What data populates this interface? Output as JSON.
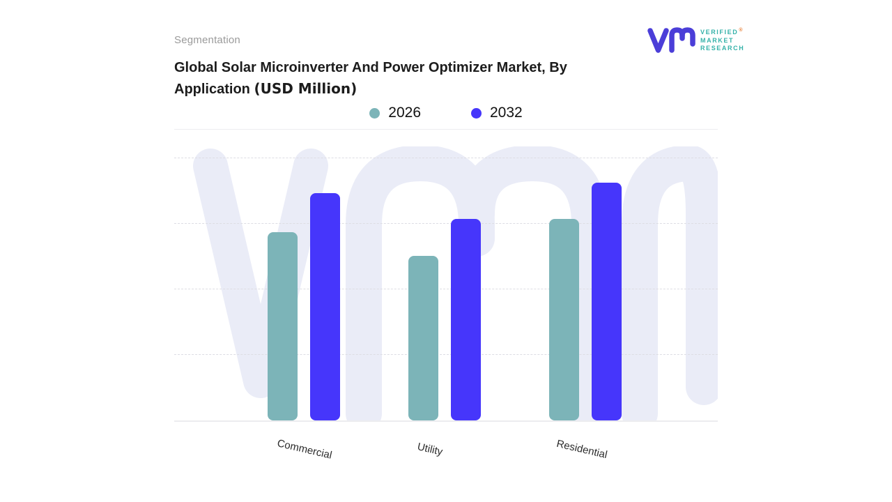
{
  "header": {
    "eyebrow": "Segmentation",
    "title": "Global Solar Microinverter And Power Optimizer Market, By Application ",
    "title_suffix": "(USD Million)"
  },
  "logo": {
    "line1": "VERIFIED",
    "registered": "®",
    "line2": "MARKET",
    "line3": "RESEARCH",
    "mark_color": "#4b3ed8",
    "text_color": "#35b2a9",
    "registered_color": "#e87f35"
  },
  "colors": {
    "series_2026": "#7cb4b8",
    "series_2032": "#4636fb",
    "watermark": "#eaecf7",
    "gridline": "#dddde3",
    "baseline": "#ececef"
  },
  "chart_data": {
    "type": "bar",
    "title": "Global Solar Microinverter And Power Optimizer Market, By Application (USD Million)",
    "categories": [
      "Commercial",
      "Utility",
      "Residential"
    ],
    "series": [
      {
        "name": "2026",
        "color": "#7cb4b8",
        "values": [
          72,
          63,
          77
        ]
      },
      {
        "name": "2032",
        "color": "#4636fb",
        "values": [
          87,
          77,
          91
        ]
      }
    ],
    "xlabel": "",
    "ylabel": "",
    "ylim": [
      0,
      100
    ],
    "y_tick_labels_visible": false,
    "values_note": "no numeric axis shown; values estimated as % of plot height",
    "grid": "horizontal dashed",
    "legend_position": "top-center",
    "watermark_text": "vmr"
  }
}
